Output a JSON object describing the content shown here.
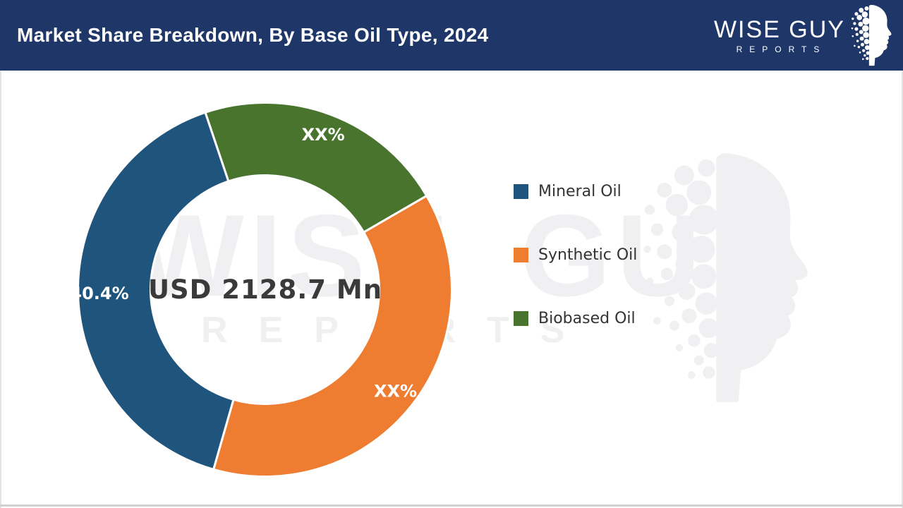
{
  "header": {
    "title": "Market Share Breakdown, By Base Oil Type, 2024",
    "logo": {
      "line1": "WISE GUY",
      "line2": "REPORTS"
    }
  },
  "chart_data": {
    "type": "pie",
    "donut": true,
    "center_label": "USD 2128.7 Mn",
    "start_angle_deg": 341.4,
    "direction": "clockwise",
    "legend_position": "right",
    "slices": [
      {
        "name": "Biobased Oil",
        "percent": 21.8,
        "display_label": "XX%",
        "color": "#48742d"
      },
      {
        "name": "Synthetic Oil",
        "percent": 37.8,
        "display_label": "XX%",
        "color": "#ee7d32"
      },
      {
        "name": "Mineral Oil",
        "percent": 40.4,
        "display_label": "40.4%",
        "color": "#1f547c"
      }
    ]
  },
  "legend": {
    "items": [
      {
        "label": "Mineral Oil",
        "color": "#1f547c"
      },
      {
        "label": "Synthetic Oil",
        "color": "#ee7d32"
      },
      {
        "label": "Biobased Oil",
        "color": "#48742d"
      }
    ]
  },
  "watermark": {
    "line1": "WISE GUY",
    "line2": "REPORTS"
  },
  "colors": {
    "header_bg": "#1e3768",
    "header_text": "#ffffff",
    "center_text": "#3a3a3a",
    "legend_text": "#333333",
    "watermark": "#f0f0f2",
    "slice_border": "#ffffff"
  }
}
